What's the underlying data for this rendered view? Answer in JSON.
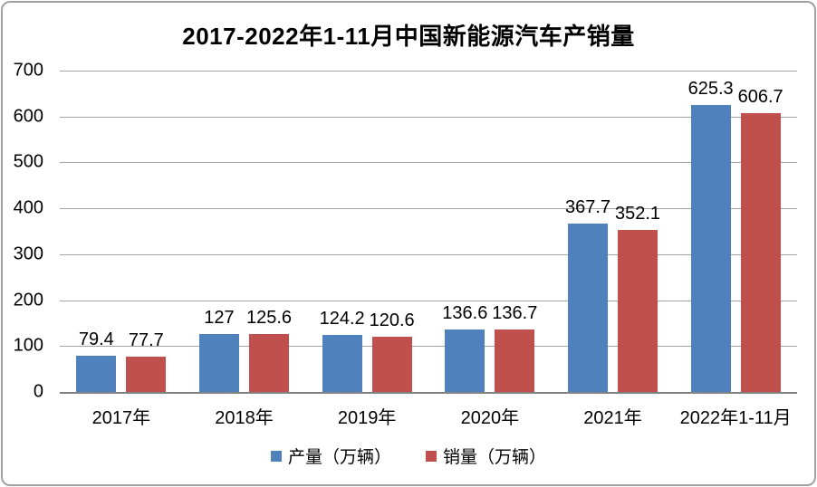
{
  "chart_data": {
    "type": "bar",
    "title": "2017-2022年1-11月中国新能源汽车产销量",
    "categories": [
      "2017年",
      "2018年",
      "2019年",
      "2020年",
      "2021年",
      "2022年1-11月"
    ],
    "series": [
      {
        "name": "产量（万辆）",
        "color": "#4F81BD",
        "values": [
          79.4,
          127,
          124.2,
          136.6,
          367.7,
          625.3
        ]
      },
      {
        "name": "销量（万辆）",
        "color": "#C0504D",
        "values": [
          77.7,
          125.6,
          120.6,
          136.7,
          352.1,
          606.7
        ]
      }
    ],
    "ylim": [
      0,
      700
    ],
    "ytick_step": 100,
    "y_tick_labels": [
      "0",
      "100",
      "200",
      "300",
      "400",
      "500",
      "600",
      "700"
    ],
    "grid": true,
    "legend_position": "bottom",
    "xlabel": "",
    "ylabel": ""
  },
  "colors": {
    "background": "#FFFFFF",
    "frame_border": "#A0A0A0",
    "gridline": "#A3A3A3",
    "axis_line": "#808080",
    "text": "#000000"
  }
}
